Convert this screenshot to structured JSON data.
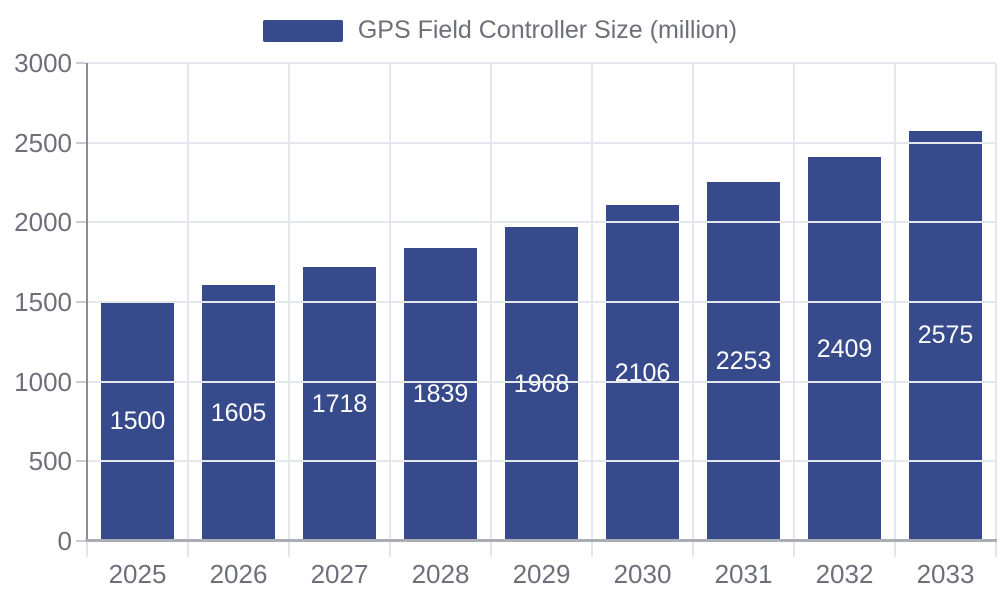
{
  "chart_data": {
    "type": "bar",
    "title": "GPS Field Controller Size (million)",
    "legend": {
      "label": "GPS Field Controller Size (million)",
      "position": "top-center"
    },
    "categories": [
      "2025",
      "2026",
      "2027",
      "2028",
      "2029",
      "2030",
      "2031",
      "2032",
      "2033"
    ],
    "values": [
      1500,
      1605,
      1718,
      1839,
      1968,
      2106,
      2253,
      2409,
      2575
    ],
    "xlabel": "",
    "ylabel": "",
    "ylim": [
      0,
      3000
    ],
    "y_ticks": [
      0,
      500,
      1000,
      1500,
      2000,
      2500,
      3000
    ],
    "grid": true,
    "bar_value_labels": "inside-center"
  },
  "colors": {
    "bar": "#364A8C",
    "bar_label": "#FFFFFF",
    "legend_text": "#6E7079",
    "axis_text": "#6E7079",
    "gridline": "#E4E7ED",
    "x_axis_line": "#ABAEB5",
    "y_axis_line": "#8A8D94",
    "y_tick": "#C8CBD1",
    "x_tick": "#E2E4E9",
    "background": "#FFFFFF"
  }
}
